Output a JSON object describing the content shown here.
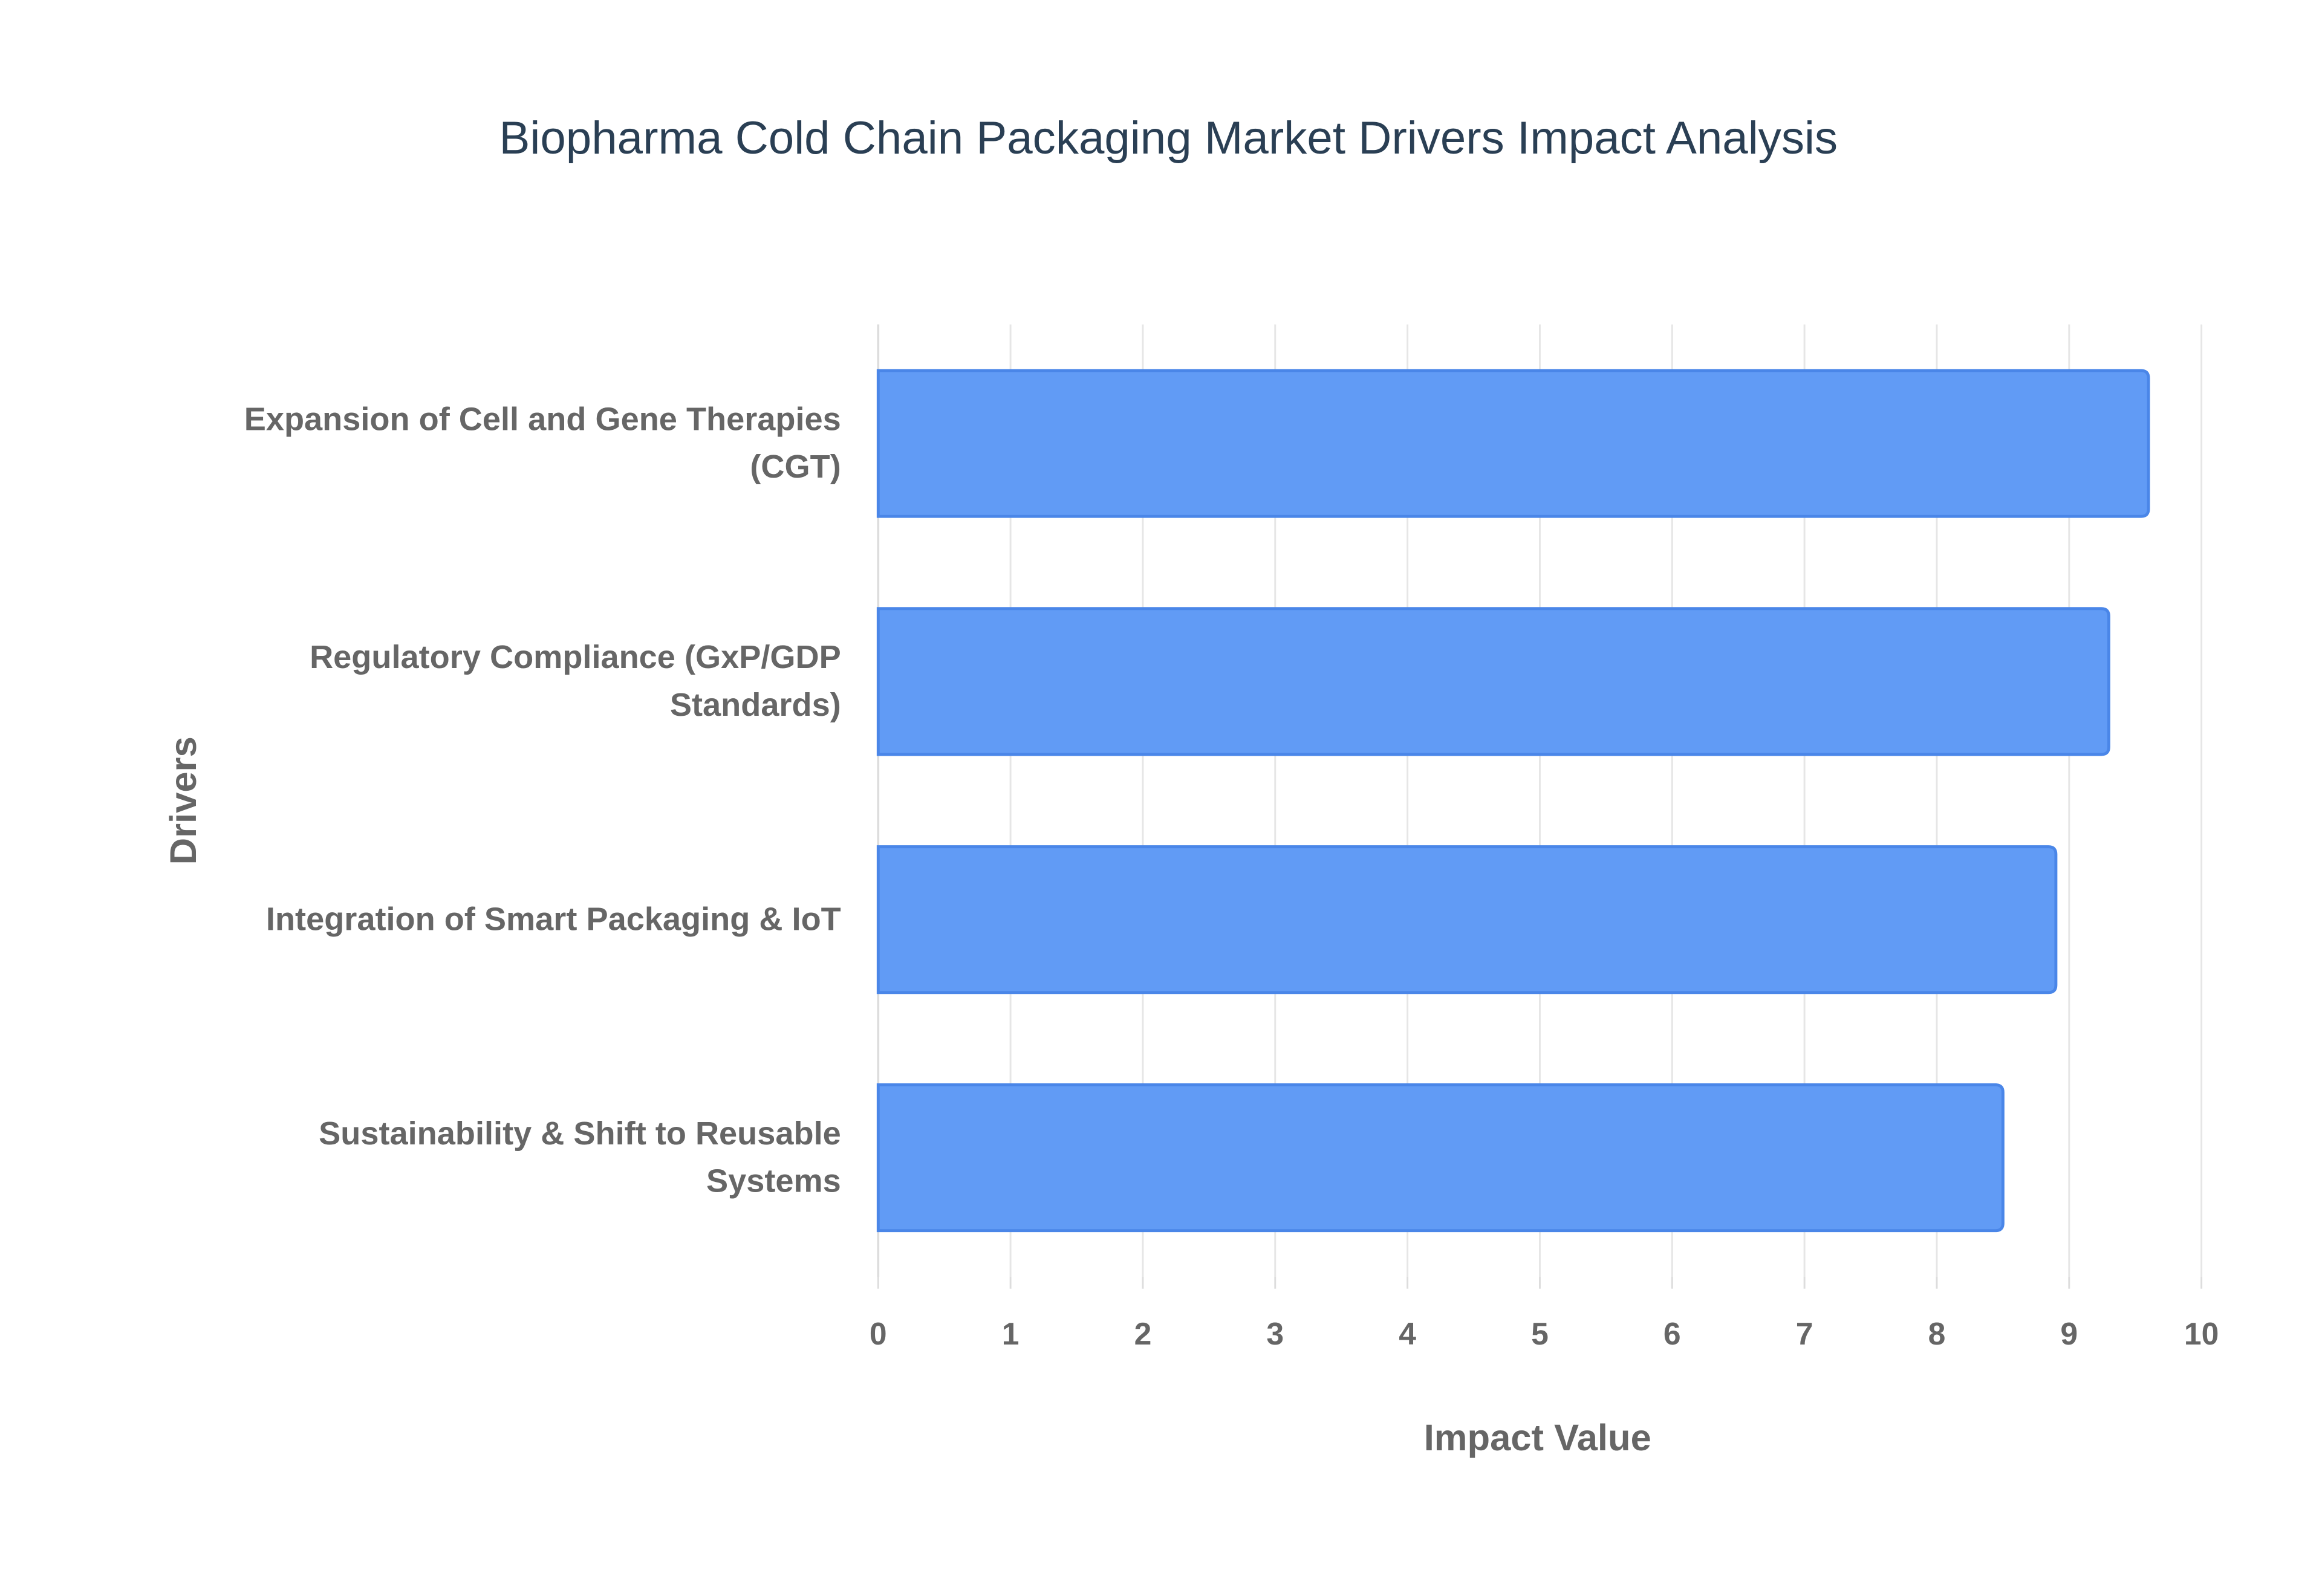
{
  "chart_data": {
    "type": "bar",
    "orientation": "horizontal",
    "title": "Biopharma Cold Chain Packaging Market Drivers Impact Analysis",
    "x_label": "Impact Value",
    "y_label": "Drivers",
    "categories": [
      "Expansion of Cell and Gene Therapies (CGT)",
      "Regulatory Compliance (GxP/GDP Standards)",
      "Integration of Smart Packaging & IoT",
      "Sustainability & Shift to Reusable Systems"
    ],
    "values": [
      9.6,
      9.3,
      8.9,
      8.5
    ],
    "color": "#619bf5",
    "border_color": "#4a86e8",
    "xlim": [
      0,
      10
    ],
    "xticks": [
      0,
      1,
      2,
      3,
      4,
      5,
      6,
      7,
      8,
      9,
      10
    ],
    "grid": true
  }
}
